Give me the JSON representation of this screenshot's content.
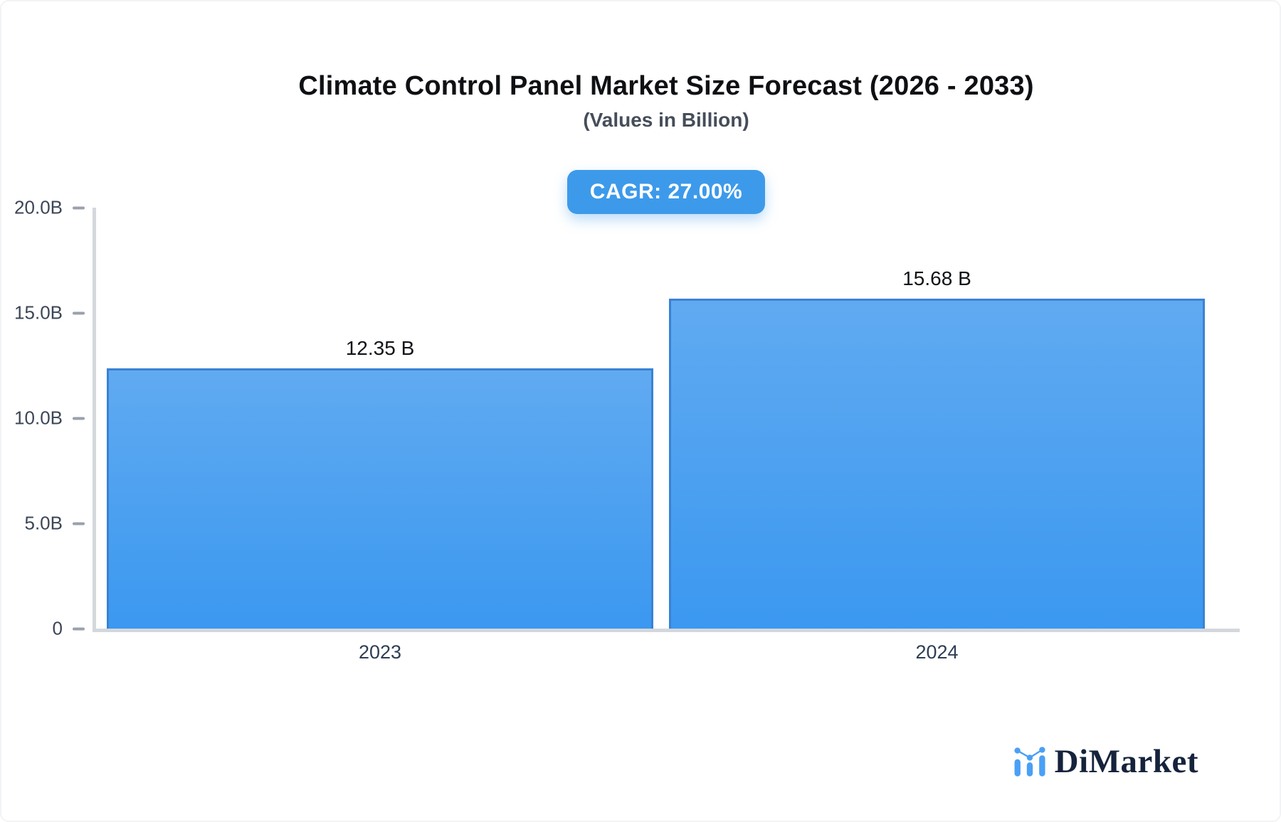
{
  "header": {
    "title": "Climate Control Panel Market Size Forecast (2026 - 2033)",
    "subtitle": "(Values in Billion)",
    "cagr_badge": "CAGR: 27.00%"
  },
  "chart_data": {
    "type": "bar",
    "title": "Climate Control Panel Market Size Forecast (2026 - 2033)",
    "subtitle": "(Values in Billion)",
    "cagr": "27.00%",
    "categories": [
      "2023",
      "2024"
    ],
    "values": [
      12.35,
      15.68
    ],
    "value_labels": [
      "12.35 B",
      "15.68 B"
    ],
    "xlabel": "",
    "ylabel": "",
    "ylim": [
      0,
      20
    ],
    "yticks": [
      {
        "value": 20,
        "label": "20.0B"
      },
      {
        "value": 15,
        "label": "15.0B"
      },
      {
        "value": 10,
        "label": "10.0B"
      },
      {
        "value": 5,
        "label": "5.0B"
      },
      {
        "value": 0,
        "label": "0"
      }
    ],
    "grid": false,
    "legend": "none"
  },
  "branding": {
    "logo_text": "DiMarket",
    "logo_icon": "bar-chart-trend-icon"
  },
  "colors": {
    "badge_bg": "#3D9AEA",
    "bar_fill_top": "#5FA9F1",
    "bar_fill_bottom": "#3B98F0",
    "bar_border": "#3A82D4",
    "axis_line": "#D4D7DC",
    "tick_mark": "#9AA1AC",
    "title_text": "#0E1013",
    "subtitle_text": "#454D59",
    "axis_label_text": "#3C4656",
    "category_label_text": "#2E3E54",
    "logo_blue": "#4AA0F5",
    "logo_navy": "#15233C"
  }
}
